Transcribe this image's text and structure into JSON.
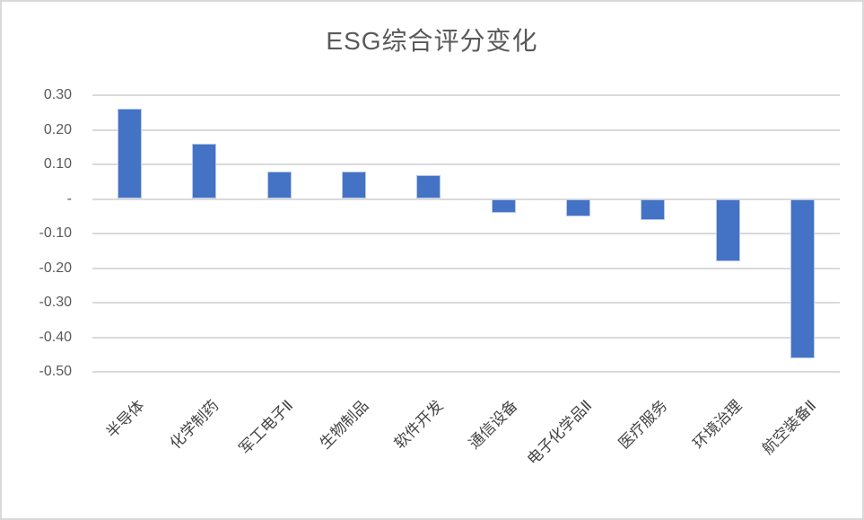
{
  "chart_data": {
    "type": "bar",
    "title": "ESG综合评分变化",
    "categories": [
      "半导体",
      "化学制药",
      "军工电子Ⅱ",
      "生物制品",
      "软件开发",
      "通信设备",
      "电子化学品Ⅱ",
      "医疗服务",
      "环境治理",
      "航空装备Ⅱ"
    ],
    "values": [
      0.26,
      0.16,
      0.08,
      0.08,
      0.07,
      -0.04,
      -0.05,
      -0.06,
      -0.18,
      -0.46
    ],
    "xlabel": "",
    "ylabel": "",
    "ylim": [
      -0.5,
      0.3
    ],
    "y_ticks": [
      {
        "v": 0.3,
        "label": "0.30"
      },
      {
        "v": 0.2,
        "label": "0.20"
      },
      {
        "v": 0.1,
        "label": "0.10"
      },
      {
        "v": 0.0,
        "label": "-"
      },
      {
        "v": -0.1,
        "label": "-0.10"
      },
      {
        "v": -0.2,
        "label": "-0.20"
      },
      {
        "v": -0.3,
        "label": "-0.30"
      },
      {
        "v": -0.4,
        "label": "-0.40"
      },
      {
        "v": -0.5,
        "label": "-0.50"
      }
    ],
    "grid": true,
    "legend": "none",
    "style": {
      "bar_color": "#4472C4",
      "bar_edge_color": "#B7C9EA",
      "gridline_color": "#DADADA",
      "title_color": "#595959",
      "ytick_color": "#595959",
      "xtick_color": "#444444",
      "frame_border_color": "#D9D9D9"
    }
  }
}
